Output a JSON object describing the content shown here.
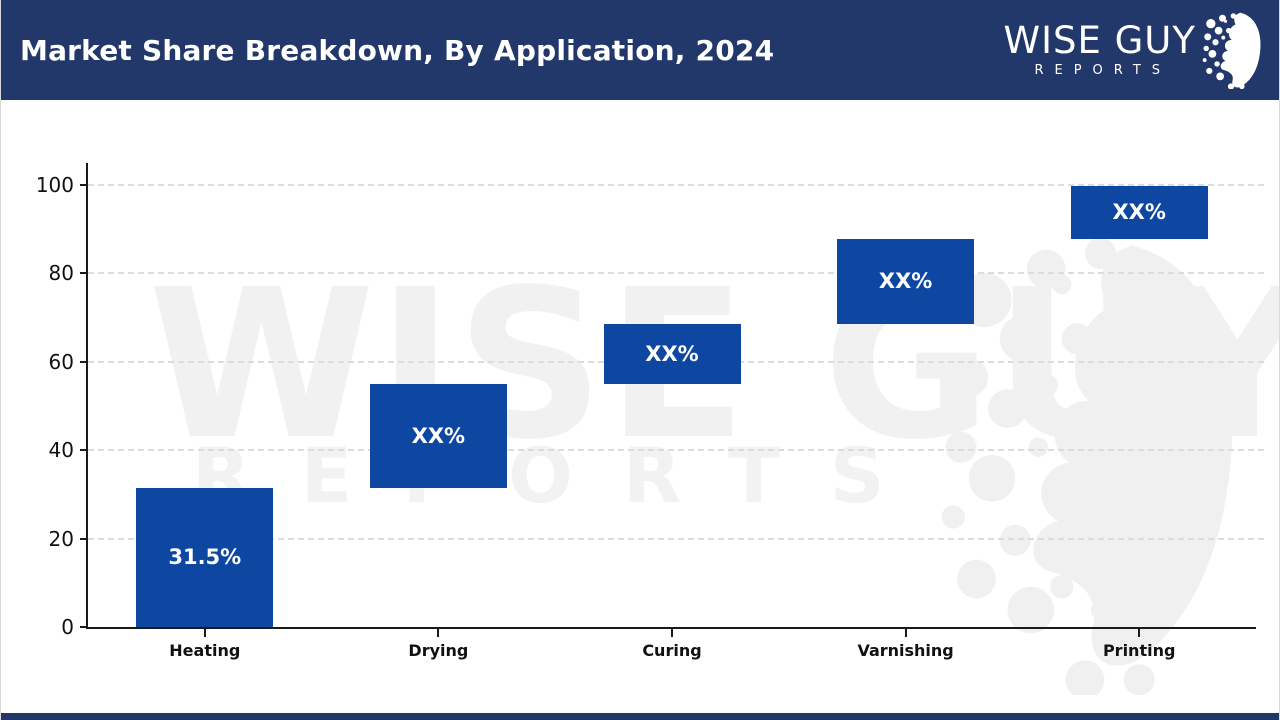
{
  "header": {
    "title": "Market Share Breakdown, By Application, 2024",
    "bg_color": "#22386b",
    "logo": {
      "line1": "WISE GUY",
      "line2": "REPORTS"
    }
  },
  "watermark": {
    "line1": "WISE GUY",
    "line2": "REPORTS"
  },
  "chart_data": {
    "type": "bar",
    "subtype": "waterfall",
    "title": "Market Share Breakdown, By Application, 2024",
    "categories": [
      "Heating",
      "Drying",
      "Curing",
      "Varnishing",
      "Printing"
    ],
    "series": [
      {
        "name": "Market Share %",
        "starts": [
          0,
          31.5,
          55.0,
          68.6,
          87.8
        ],
        "ends": [
          31.5,
          55.0,
          68.6,
          87.8,
          99.8
        ]
      }
    ],
    "bar_labels": [
      "31.5%",
      "XX%",
      "XX%",
      "XX%",
      "XX%"
    ],
    "xlabel": "",
    "ylabel": "",
    "yticks": [
      0,
      20,
      40,
      60,
      80,
      100
    ],
    "ylim": [
      0,
      105
    ],
    "grid": "horizontal-dashed",
    "legend": "none",
    "bar_color": "#0d47a1",
    "label_color": "#ffffff"
  }
}
